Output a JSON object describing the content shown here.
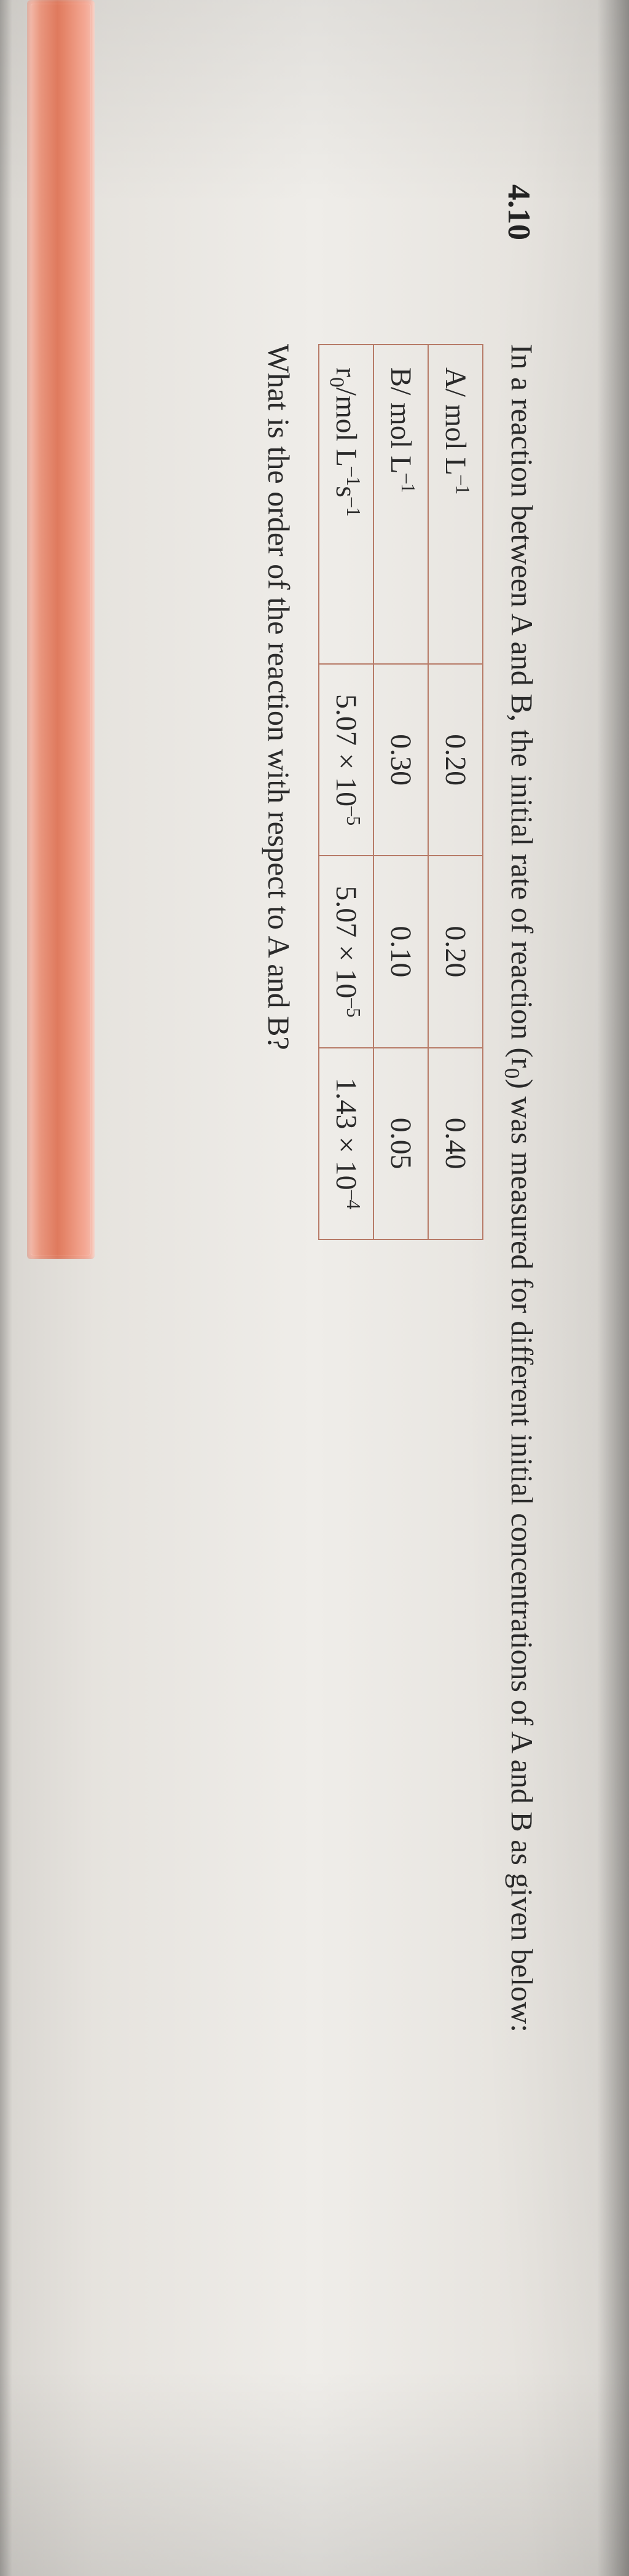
{
  "question": {
    "number": "4.10",
    "text_line1": "In a reaction between A and B, the initial rate of reaction (r",
    "text_r0_sub": "0",
    "text_line1_tail": ") was measured",
    "text_line2": "for different initial concentrations of A and B as given below:",
    "followup": "What is the order of the reaction with respect to A and B?"
  },
  "table": {
    "border_color": "#b77b68",
    "rows": [
      {
        "label_prefix": "A/ mol L",
        "label_sup": "–1",
        "cells": [
          "0.20",
          "0.20",
          "0.40"
        ]
      },
      {
        "label_prefix": "B/ mol L",
        "label_sup": "–1",
        "cells": [
          "0.30",
          "0.10",
          "0.05"
        ]
      },
      {
        "label_prefix": "r",
        "label_sub": "0",
        "label_mid": "/mol L",
        "label_sup1": "–1",
        "label_tail": "s",
        "label_sup2": "–1",
        "cells_rich": [
          {
            "m": "5.07 × 10",
            "e": "–5"
          },
          {
            "m": "5.07 × 10",
            "e": "–5"
          },
          {
            "m": "1.43 × 10",
            "e": "–4"
          }
        ]
      }
    ]
  },
  "style": {
    "page_bg": "#e8e6e2",
    "text_color": "#2a2a2a",
    "bar_gradient_top": "#f6bfb0",
    "bar_gradient_mid": "#e58569",
    "bar_gradient_bottom": "#f6c4b7",
    "body_fontsize_pt": 38,
    "qnum_fontsize_pt": 40,
    "table_fontsize_pt": 36
  }
}
